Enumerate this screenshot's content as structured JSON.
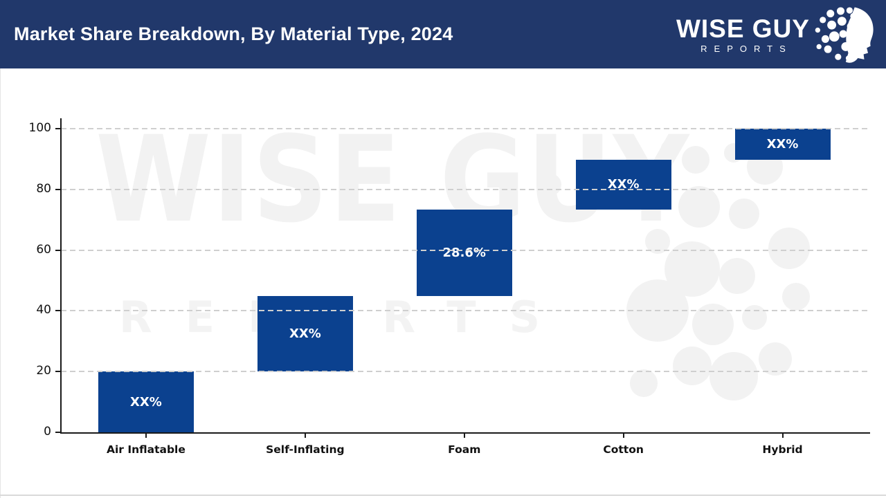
{
  "header": {
    "title": "Market Share Breakdown, By Material Type, 2024",
    "bg_color": "#21386b",
    "logo": {
      "line1": "WISE GUY",
      "line2": "REPORTS"
    }
  },
  "watermark": {
    "line1": "WISE GUY",
    "line2": "REPORTS"
  },
  "chart_data": {
    "type": "bar",
    "subtype": "waterfall",
    "title": "Market Share Breakdown, By Material Type, 2024",
    "xlabel": "",
    "ylabel": "",
    "categories": [
      "Air Inflatable",
      "Self-Inflating",
      "Foam",
      "Cotton",
      "Hybrid"
    ],
    "segments": [
      {
        "category": "Air Inflatable",
        "start": 0,
        "end": 20,
        "label": "XX%"
      },
      {
        "category": "Self-Inflating",
        "start": 20,
        "end": 44.8,
        "label": "XX%"
      },
      {
        "category": "Foam",
        "start": 44.8,
        "end": 73.4,
        "label": "28.6%"
      },
      {
        "category": "Cotton",
        "start": 73.4,
        "end": 89.8,
        "label": "XX%"
      },
      {
        "category": "Hybrid",
        "start": 89.8,
        "end": 100,
        "label": "XX%"
      }
    ],
    "y_ticks": [
      0,
      20,
      40,
      60,
      80,
      100
    ],
    "ylim": [
      0,
      100
    ],
    "grid": true,
    "grid_style": "dashed",
    "grid_on_top": true,
    "bar_color": "#0b418f",
    "bar_label_color": "#ffffff",
    "axis_color": "#1a1a1a"
  }
}
